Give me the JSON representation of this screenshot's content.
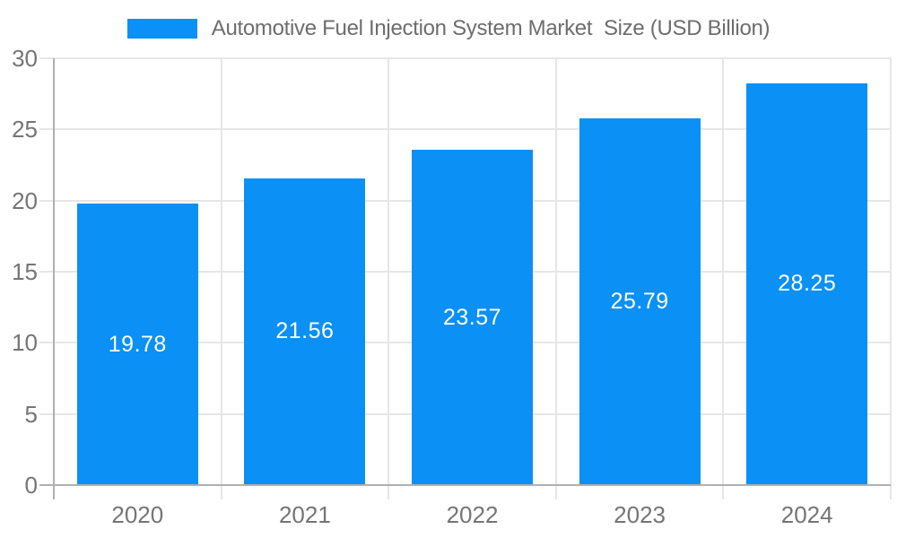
{
  "legend": {
    "label": "Automotive Fuel Injection System Market  Size (USD Billion)"
  },
  "colors": {
    "bar": "#0b90f5",
    "grid": "#e6e6e6",
    "axis": "#b0b0b0",
    "axis_text": "#757575",
    "legend_text": "#6d6d6d",
    "bar_label_text": "#ffffff",
    "background": "#ffffff"
  },
  "chart_data": {
    "type": "bar",
    "title": "Automotive Fuel Injection System Market  Size (USD Billion)",
    "categories": [
      "2020",
      "2021",
      "2022",
      "2023",
      "2024"
    ],
    "values": [
      19.78,
      21.56,
      23.57,
      25.79,
      28.25
    ],
    "series": [
      {
        "name": "Automotive Fuel Injection System Market  Size (USD Billion)",
        "values": [
          19.78,
          21.56,
          23.57,
          25.79,
          28.25
        ]
      }
    ],
    "xlabel": "",
    "ylabel": "",
    "ylim": [
      0,
      30
    ],
    "yticks": [
      0,
      5,
      10,
      15,
      20,
      25,
      30
    ],
    "grid": true,
    "legend_position": "top",
    "value_labels": "inside-center"
  }
}
